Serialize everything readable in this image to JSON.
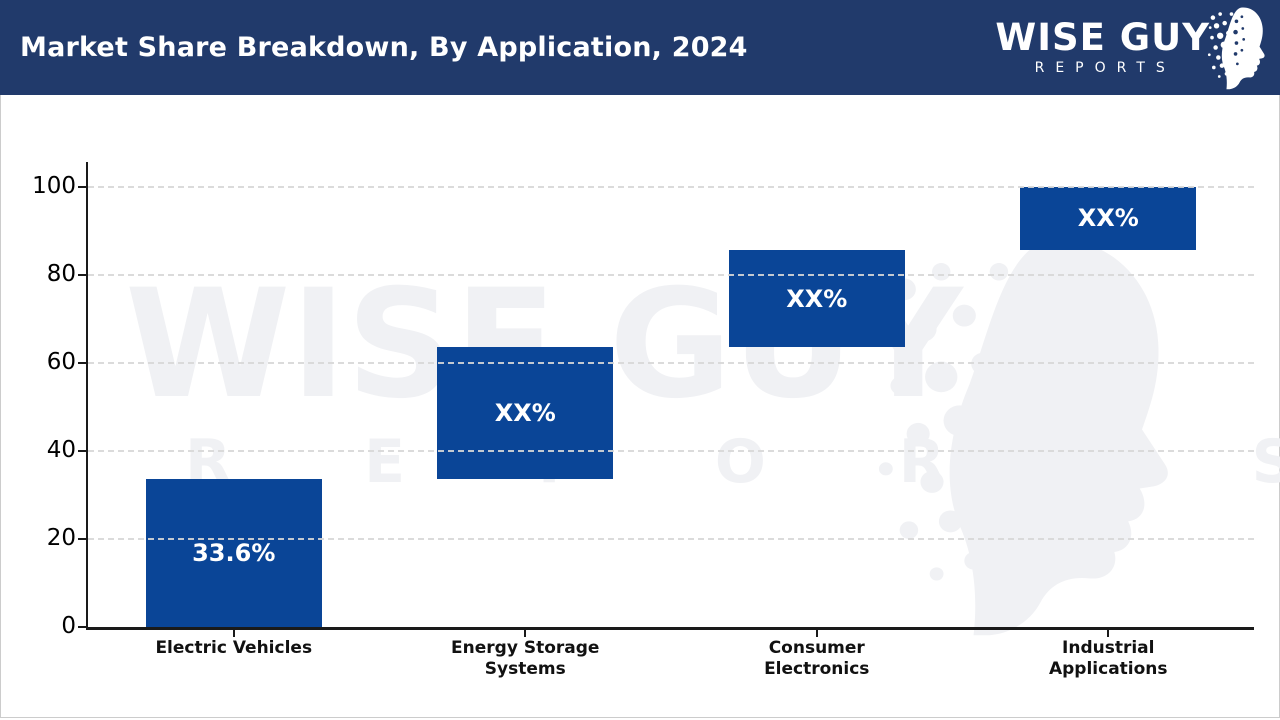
{
  "header": {
    "title": "Market Share Breakdown, By Application, 2024",
    "logo": {
      "line1": "WISE GUY",
      "line2": "REPORTS",
      "icon": "head-profile-dots-icon"
    }
  },
  "watermark": {
    "line1": "WISE GUY",
    "line2": "R E P O R T S",
    "icon": "head-profile-dots-watermark"
  },
  "chart_data": {
    "type": "bar",
    "subtype": "stacked-waterfall-breakdown",
    "title": "Market Share Breakdown, By Application, 2024",
    "categories": [
      "Electric Vehicles",
      "Energy Storage Systems",
      "Consumer Electronics",
      "Industrial Applications"
    ],
    "category_label_lines": [
      [
        "Electric Vehicles"
      ],
      [
        "Energy Storage",
        "Systems"
      ],
      [
        "Consumer",
        "Electronics"
      ],
      [
        "Industrial",
        "Applications"
      ]
    ],
    "segments": [
      {
        "category": "Electric Vehicles",
        "start": 0,
        "end": 33.6,
        "value": 33.6,
        "label": "33.6%"
      },
      {
        "category": "Energy Storage Systems",
        "start": 33.6,
        "end": 63.5,
        "value": 29.9,
        "label": "XX%"
      },
      {
        "category": "Consumer Electronics",
        "start": 63.5,
        "end": 85.5,
        "value": 22.0,
        "label": "XX%"
      },
      {
        "category": "Industrial Applications",
        "start": 85.5,
        "end": 100,
        "value": 14.5,
        "label": "XX%"
      }
    ],
    "yticks": [
      0,
      20,
      40,
      60,
      80,
      100
    ],
    "ylim": [
      0,
      105
    ],
    "xlabel": "",
    "ylabel": "",
    "grid": "horizontal-dashed",
    "legend": "none",
    "bar_color": "#0a4597",
    "bar_label_color": "#ffffff"
  },
  "colors": {
    "header_bg": "#213a6b",
    "bar": "#0a4597",
    "axis": "#1a1a1a",
    "grid": "#d7d7d7",
    "watermark": "#f0f1f4",
    "panel_border": "#cccccc",
    "text": "#111111"
  }
}
